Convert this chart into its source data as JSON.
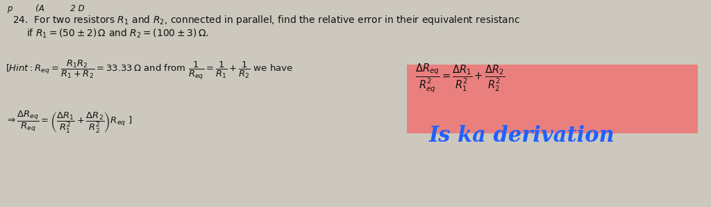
{
  "background_color": "#ccc8be",
  "highlight_color": "#f07070",
  "annotation_color": "#2060ff",
  "text_color": "#111111",
  "top_text": "p         (A          2 D",
  "title_num": "24.",
  "title_body": "  For two resistors $R_1$ and $R_2$, connected in parallel, find the relative error in their equivalent resistanc",
  "subtitle": "   if $R_1 = (50 \\pm 2)\\,\\Omega$ and $R_2 = (100 \\pm 3)\\,\\Omega$.",
  "hint_left": "$[Hint : R_{eq} = \\dfrac{R_1 R_2}{R_1 + R_2} = 33.33\\,\\Omega$ and from $\\dfrac{1}{R_{eq}} = \\dfrac{1}{R_1} + \\dfrac{1}{R_2}$ we have",
  "hint_highlighted": "$\\dfrac{\\Delta R_{eq}}{R_{eq}^2} = \\dfrac{\\Delta R_1}{R_1^2} + \\dfrac{\\Delta R_2}{R_2^2}$",
  "hint_line2": "$\\Rightarrow \\dfrac{\\Delta R_{eq}}{R_{eq}} = \\left(\\dfrac{\\Delta R_1}{R_1^2} + \\dfrac{\\Delta R_2}{R_2^2}\\right) R_{eq}$ ]",
  "annotation": "Is ka derivation"
}
